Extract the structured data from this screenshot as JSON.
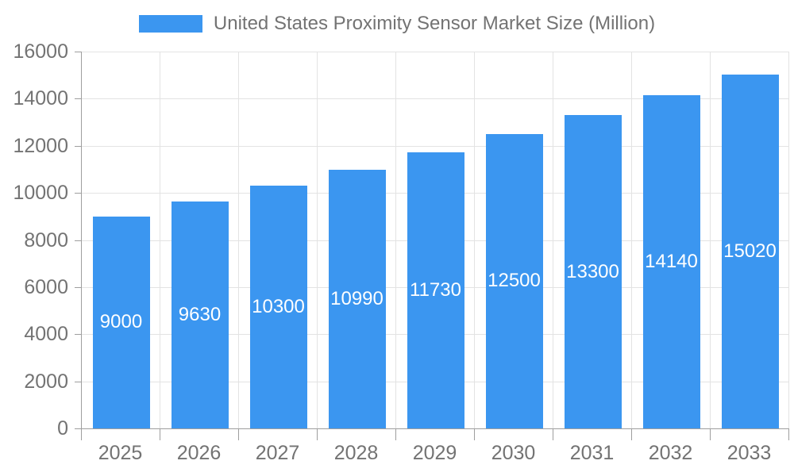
{
  "legend": {
    "label": "United States Proximity Sensor Market Size (Million)"
  },
  "colors": {
    "bar": "#3b96f0",
    "axis_text": "#737373",
    "grid_line": "#e3e3e3",
    "axis_line": "#9e9e9e",
    "value_label": "#ffffff",
    "background": "#ffffff"
  },
  "chart_data": {
    "type": "bar",
    "title": "United States Proximity Sensor Market Size (Million)",
    "categories": [
      "2025",
      "2026",
      "2027",
      "2028",
      "2029",
      "2030",
      "2031",
      "2032",
      "2033"
    ],
    "values": [
      9000,
      9630,
      10300,
      10990,
      11730,
      12500,
      13300,
      14140,
      15020
    ],
    "xlabel": "",
    "ylabel": "",
    "ylim": [
      0,
      16000
    ],
    "ytick_step": 2000,
    "yticks": [
      0,
      2000,
      4000,
      6000,
      8000,
      10000,
      12000,
      14000,
      16000
    ],
    "grid": true,
    "legend_position": "top-center",
    "value_label_position": "inside-center"
  }
}
